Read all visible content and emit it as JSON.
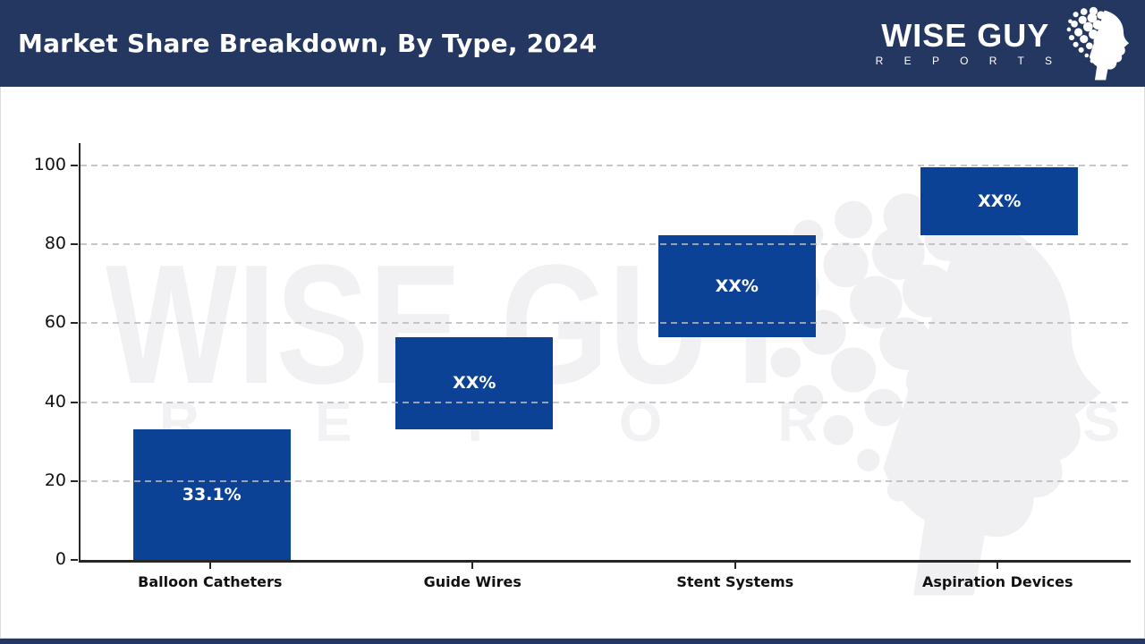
{
  "header": {
    "title": "Market Share Breakdown, By Type, 2024",
    "bg_color": "#243760",
    "logo": {
      "line1": "WISE GUY",
      "line2": "R E P O R T S"
    }
  },
  "watermark": {
    "line1": "WISE GUY",
    "line2": "R E P O R T S"
  },
  "chart_data": {
    "type": "bar",
    "variant": "waterfall",
    "title": "Market Share Breakdown, By Type, 2024",
    "categories": [
      "Balloon Catheters",
      "Guide Wires",
      "Stent Systems",
      "Aspiration Devices"
    ],
    "segments": [
      {
        "category": "Balloon Catheters",
        "start": 0,
        "end": 33.1,
        "label": "33.1%"
      },
      {
        "category": "Guide Wires",
        "start": 33.1,
        "end": 56.5,
        "label": "XX%"
      },
      {
        "category": "Stent Systems",
        "start": 56.5,
        "end": 82.3,
        "label": "XX%"
      },
      {
        "category": "Aspiration Devices",
        "start": 82.3,
        "end": 99.6,
        "label": "XX%"
      }
    ],
    "yticks": [
      0,
      20,
      40,
      60,
      80,
      100
    ],
    "ylim": [
      0,
      105.7
    ],
    "xlabel": "",
    "ylabel": "",
    "bar_color": "#0b4295",
    "grid": "horizontal-dashed",
    "grid_color": "#d9d9d9",
    "axis_color": "#262626",
    "legend": "none"
  }
}
